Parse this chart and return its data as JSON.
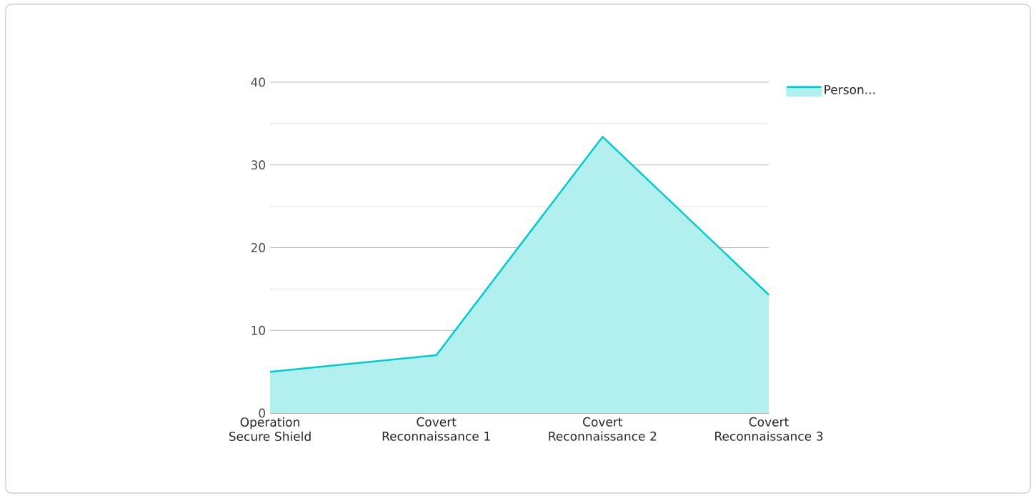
{
  "chart_data": {
    "type": "area",
    "categories": [
      "Operation Secure Shield",
      "Covert Reconnaissance 1",
      "Covert Reconnaissance 2",
      "Covert Reconnaissance 3"
    ],
    "series": [
      {
        "name": "Person...",
        "color": "#00cccc",
        "values": [
          5,
          7,
          33.4,
          14.3
        ]
      }
    ],
    "ylim": [
      0,
      40
    ],
    "yticks": [
      0,
      10,
      20,
      30,
      40
    ],
    "grid": "y",
    "legend": "top right"
  }
}
